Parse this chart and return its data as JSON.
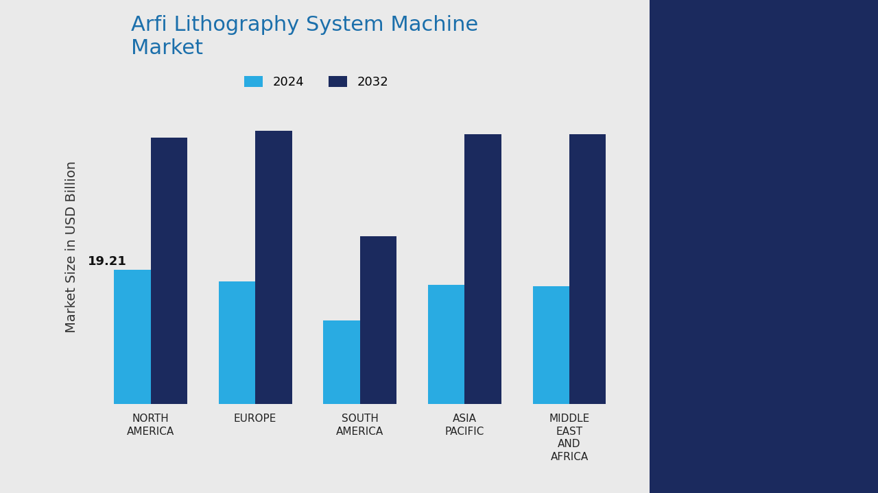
{
  "title": "Arfi Lithography System Machine\nMarket",
  "ylabel": "Market Size in USD Billion",
  "categories": [
    "NORTH\nAMERICA",
    "EUROPE",
    "SOUTH\nAMERICA",
    "ASIA\nPACIFIC",
    "MIDDLE\nEAST\nAND\nAFRICA"
  ],
  "values_2024": [
    19.21,
    17.5,
    12.0,
    17.0,
    16.8
  ],
  "values_2032": [
    38.0,
    39.0,
    24.0,
    38.5,
    38.5
  ],
  "color_2024": "#29ABE2",
  "color_2032": "#1B2A5E",
  "annotation_value": "19.21",
  "annotation_category_index": 0,
  "background_color": "#EAEAEA",
  "title_color": "#1B6FAB",
  "axis_label_color": "#333333",
  "tick_label_color": "#222222",
  "legend_labels": [
    "2024",
    "2032"
  ],
  "bar_width": 0.35,
  "ylim": [
    0,
    45
  ],
  "title_fontsize": 22,
  "ylabel_fontsize": 14,
  "tick_fontsize": 11,
  "legend_fontsize": 13,
  "annotation_fontsize": 13
}
